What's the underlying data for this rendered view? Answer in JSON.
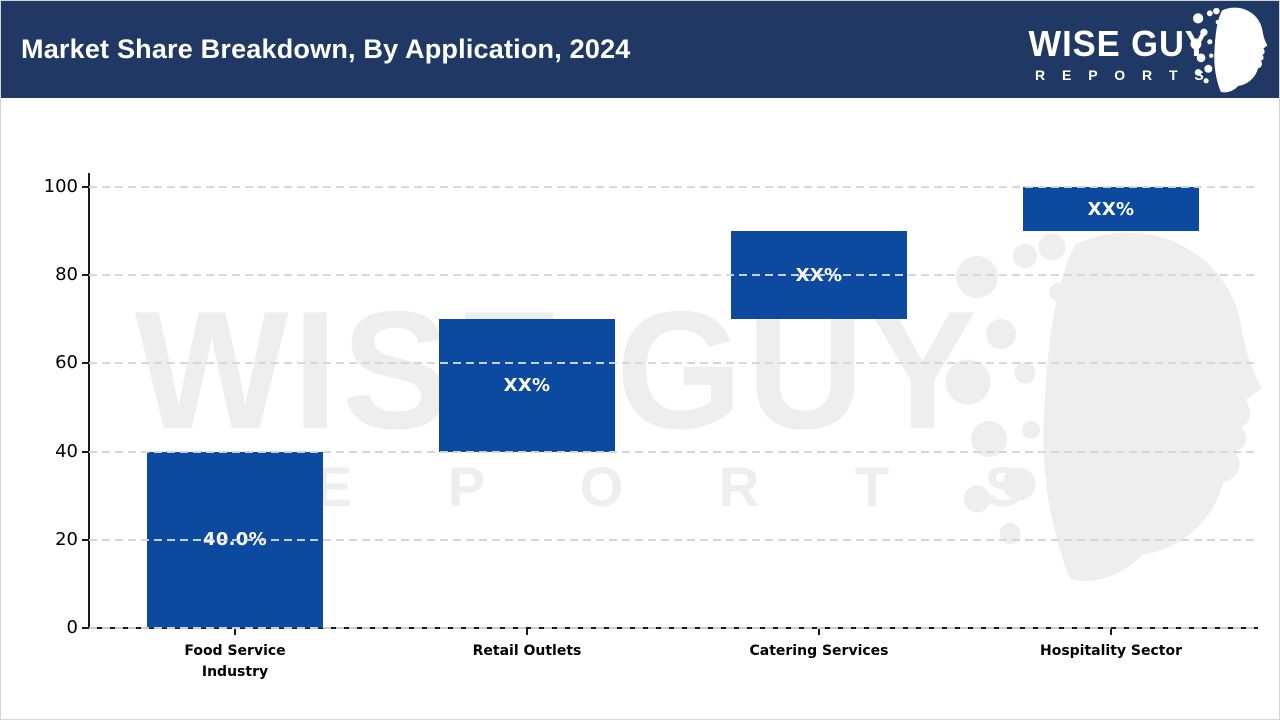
{
  "header": {
    "title": "Market Share Breakdown, By Application, 2024",
    "logo": {
      "line1": "WISE GUY",
      "line2": "R E P O R T S"
    }
  },
  "watermark": {
    "line1": "WISE GUY",
    "line2": "R E P O R T S"
  },
  "colors": {
    "header_bg": "#1f3864",
    "bar": "#0c4aa0",
    "grid": "#d6d6d6",
    "axis": "#1a1a1a",
    "watermark": "#eeeeee",
    "bar_label": "#ffffff",
    "page_border": "#d5d5d5"
  },
  "chart_data": {
    "type": "bar",
    "subtype": "floating-segment",
    "title": "Market Share Breakdown, By Application, 2024",
    "categories": [
      "Food Service\nIndustry",
      "Retail Outlets",
      "Catering Services",
      "Hospitality Sector"
    ],
    "bars": [
      {
        "category": "Food Service Industry",
        "start": 0,
        "end": 40,
        "label": "40.0%"
      },
      {
        "category": "Retail Outlets",
        "start": 40,
        "end": 70,
        "label": "XX%"
      },
      {
        "category": "Catering Services",
        "start": 70,
        "end": 90,
        "label": "XX%"
      },
      {
        "category": "Hospitality Sector",
        "start": 90,
        "end": 100,
        "label": "XX%"
      }
    ],
    "ylim": [
      0,
      100
    ],
    "yticks": [
      0,
      20,
      40,
      60,
      80,
      100
    ],
    "xlabel": "",
    "ylabel": "",
    "grid": "horizontal-dashed-over-bars",
    "legend": "none"
  }
}
